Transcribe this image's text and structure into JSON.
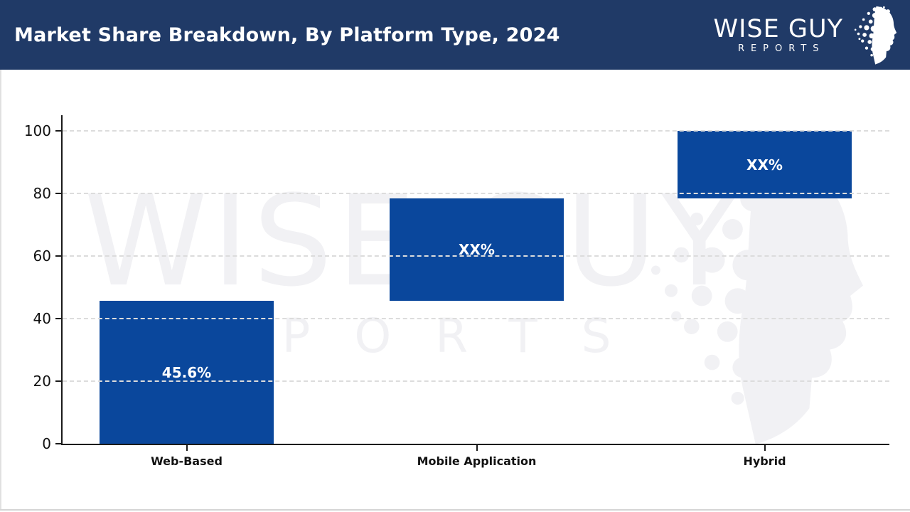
{
  "header": {
    "title": "Market Share Breakdown, By Platform Type, 2024",
    "background": "#203a67",
    "logo": {
      "line1": "WISE GUY",
      "line2": "REPORTS",
      "icon": "wiseguy-head-icon"
    }
  },
  "watermark": {
    "line1": "WISE GUY",
    "line2": "REPORTS",
    "icon": "wiseguy-head-icon"
  },
  "chart_data": {
    "type": "bar",
    "subtype": "waterfall",
    "title": "Market Share Breakdown, By Platform Type, 2024",
    "categories": [
      "Web-Based",
      "Mobile Application",
      "Hybrid"
    ],
    "segments": [
      {
        "category": "Web-Based",
        "start": 0,
        "end": 45.6,
        "label": "45.6%"
      },
      {
        "category": "Mobile Application",
        "start": 45.6,
        "end": 78.3,
        "label": "XX%"
      },
      {
        "category": "Hybrid",
        "start": 78.3,
        "end": 100,
        "label": "XX%"
      }
    ],
    "ylim": [
      0,
      100
    ],
    "yticks": [
      0,
      20,
      40,
      60,
      80,
      100
    ],
    "xlabel": "",
    "ylabel": "",
    "grid": true,
    "grid_style": "dashed",
    "legend": false,
    "bar_color": "#0a479c",
    "grid_color": "#dcdcdc",
    "axis_color": "#1a1a1a",
    "bar_label_color": "#ffffff"
  }
}
